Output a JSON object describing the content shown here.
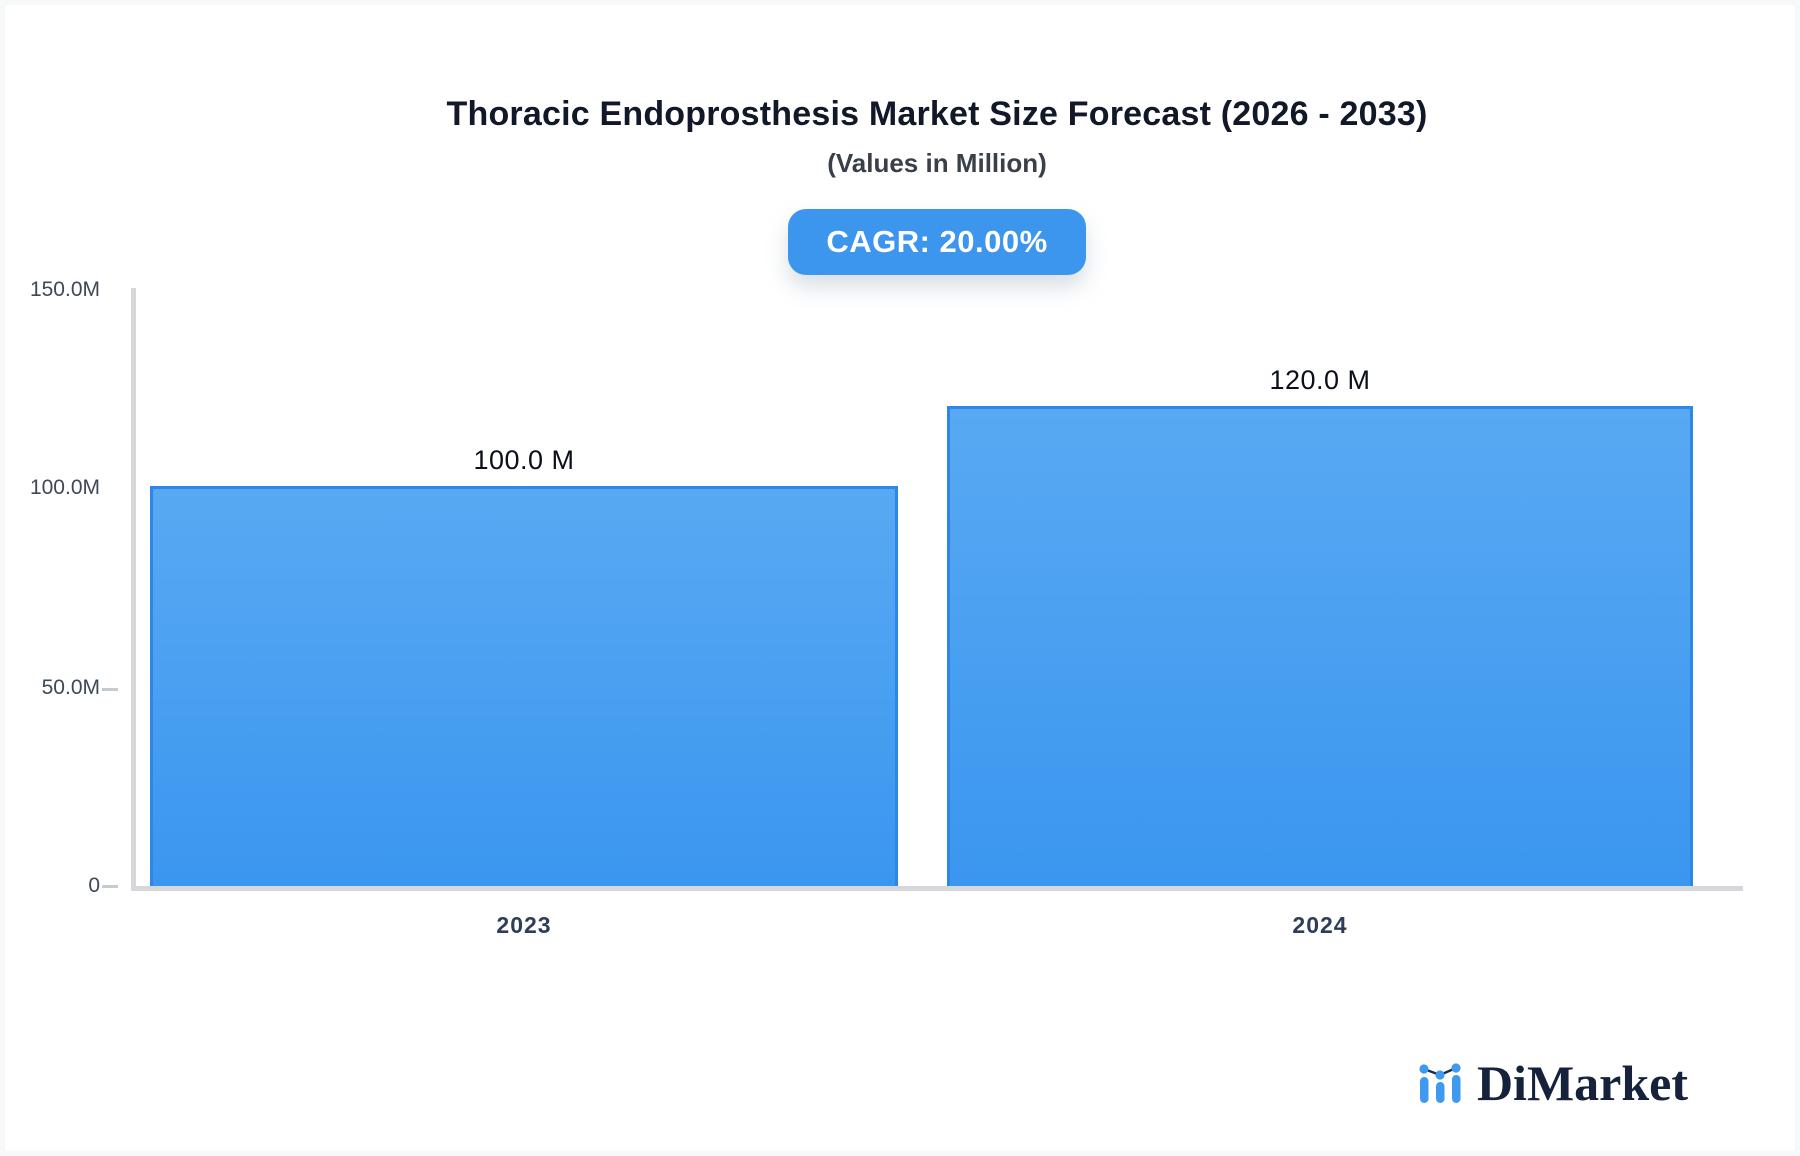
{
  "chart_data": {
    "type": "bar",
    "title": "Thoracic Endoprosthesis Market Size Forecast (2026 - 2033)",
    "subtitle": "(Values in Million)",
    "cagr_badge": "CAGR: 20.00%",
    "categories": [
      "2023",
      "2024"
    ],
    "values": [
      100.0,
      120.0
    ],
    "value_labels": [
      "100.0 M",
      "120.0 M"
    ],
    "unit": "Million",
    "ylim": [
      0,
      150
    ],
    "ytick_labels": [
      "150.0M",
      "100.0M",
      "50.0M",
      "0"
    ],
    "ytick_values": [
      150,
      100,
      50,
      0
    ],
    "grid": false,
    "legend": false
  },
  "branding": {
    "logo_text": "DiMarket",
    "logo_icon": "bar-line-chart-icon"
  },
  "colors": {
    "bar_fill_top": "#58A9F3",
    "bar_fill_bottom": "#3B96EF",
    "bar_border": "#2D87E7",
    "badge_bg": "#3D96EE",
    "badge_text": "#FFFFFF",
    "axis": "#D5D7DB",
    "tick": "#C7CBD1",
    "title_text": "#111827",
    "subtitle_text": "#3A4049",
    "ytick_text": "#3E4856",
    "xtick_text": "#2E3D58",
    "value_text": "#0B0F19",
    "logo_text_color": "#16213C",
    "logo_blue": "#3D9AF0"
  }
}
